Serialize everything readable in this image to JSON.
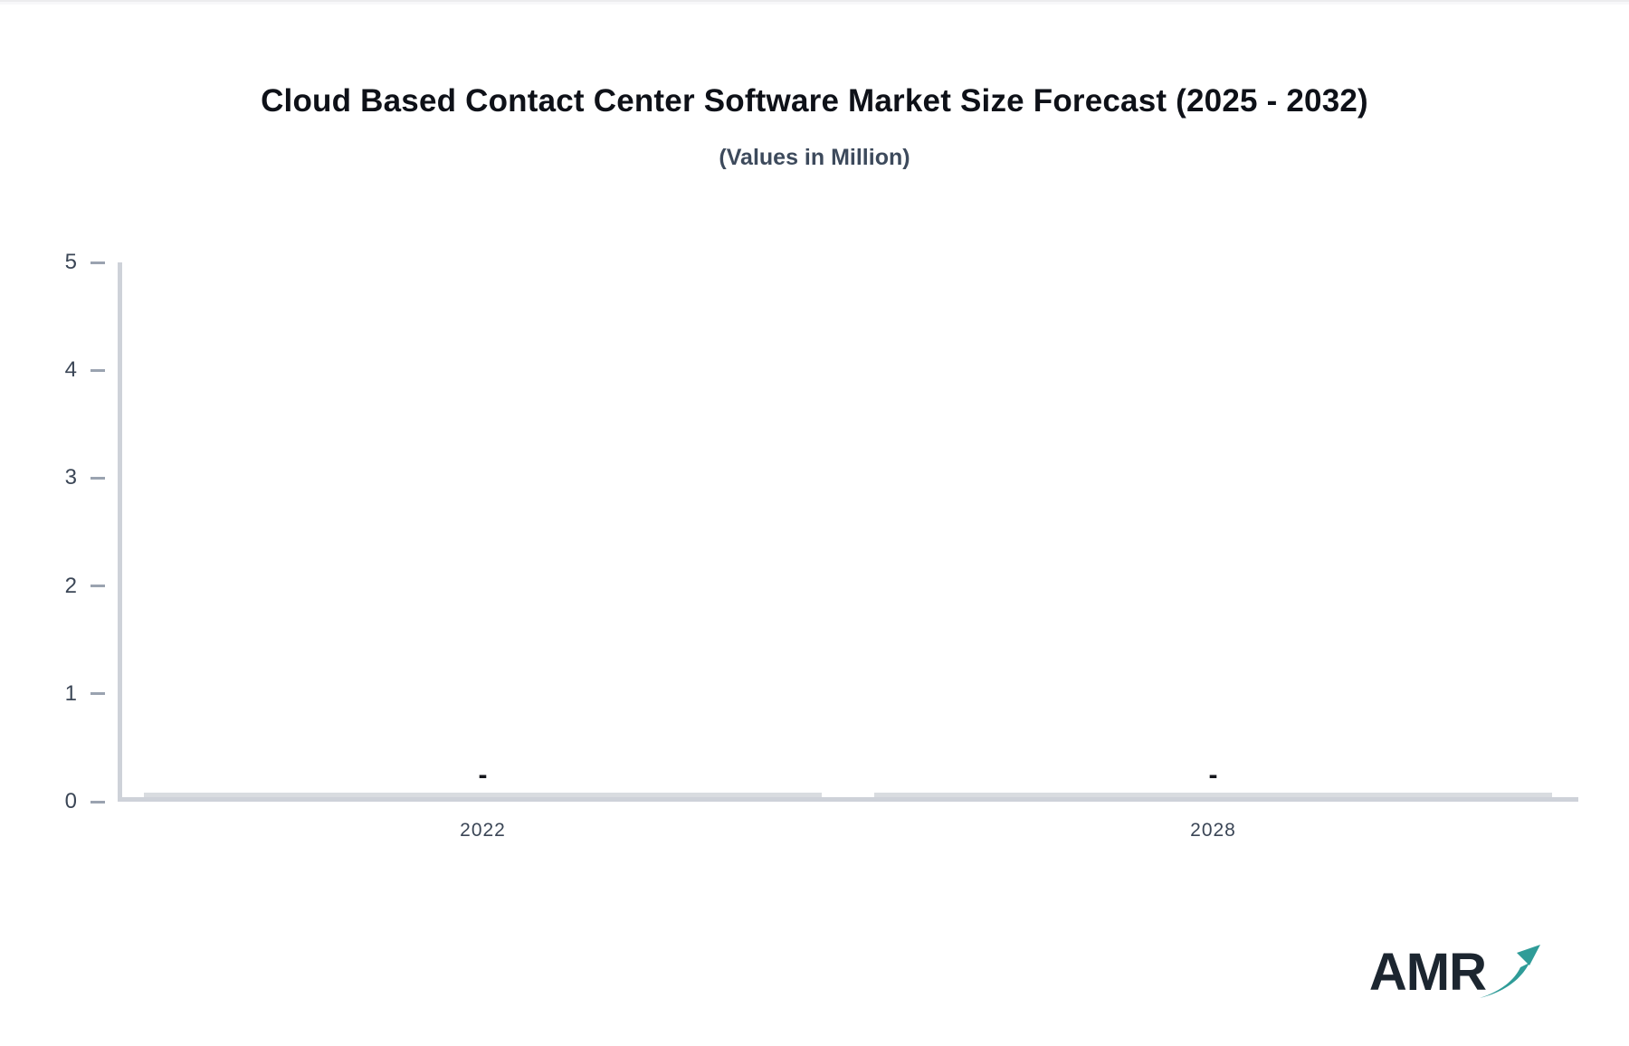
{
  "chart_data": {
    "type": "bar",
    "title": "Cloud Based Contact Center Software Market Size Forecast (2025 - 2032)",
    "subtitle": "(Values in Million)",
    "categories": [
      "2022",
      "2028"
    ],
    "values": [
      0,
      0
    ],
    "value_labels": [
      "-",
      "-"
    ],
    "xlabel": "",
    "ylabel": "",
    "ylim": [
      0,
      5
    ],
    "yticks": [
      "0",
      "1",
      "2",
      "3",
      "4",
      "5"
    ],
    "grid": false,
    "legend_position": "none",
    "colors": {
      "bar": "#d9dce0",
      "axis_line": "#ced2d9",
      "tick_mark": "#9aa3b0",
      "tick_label": "#3b4656",
      "value_label": "#15161c",
      "title": "#0e1118",
      "subtitle": "#3d4a5c"
    }
  },
  "logo": {
    "text": "AMR",
    "text_color": "#1c2630",
    "arrow_color": "#2f9c98",
    "arrow_icon": "growth-arrow-icon"
  }
}
